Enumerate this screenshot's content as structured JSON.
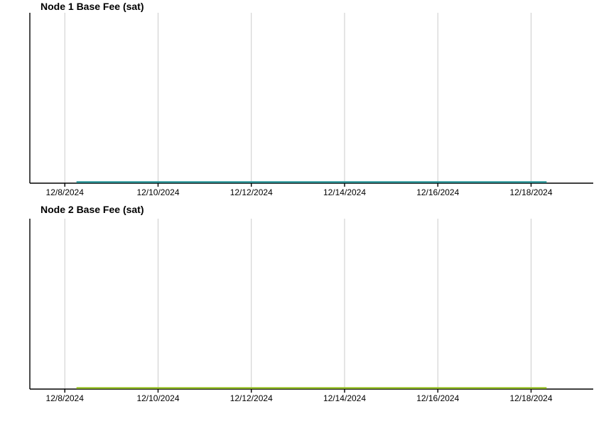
{
  "chart_data": [
    {
      "type": "line",
      "title": "Node 1 Base Fee (sat)",
      "xlabel": "",
      "ylabel": "",
      "legend": "none",
      "grid": "vertical-only",
      "grid_color": "#cbcbcb",
      "axis_color": "#000000",
      "tick_label_color": "#000000",
      "x_tick_labels": [
        "12/8/2024",
        "12/10/2024",
        "12/12/2024",
        "12/14/2024",
        "12/16/2024",
        "12/18/2024"
      ],
      "y_tick_labels": [],
      "x_range": [
        "12/7/2024 06:00",
        "12/19/2024 08:00"
      ],
      "ylim": [
        0,
        1
      ],
      "series": [
        {
          "name": "Node 1 Base Fee (sat)",
          "color": "#2c999c",
          "shape": "flat-constant-line",
          "x": [
            "12/8/2024 06:00",
            "12/18/2024 08:00"
          ],
          "y": [
            0,
            0
          ]
        }
      ]
    },
    {
      "type": "line",
      "title": "Node 2 Base Fee (sat)",
      "xlabel": "",
      "ylabel": "",
      "legend": "none",
      "grid": "vertical-only",
      "grid_color": "#cbcbcb",
      "axis_color": "#000000",
      "tick_label_color": "#000000",
      "x_tick_labels": [
        "12/8/2024",
        "12/10/2024",
        "12/12/2024",
        "12/14/2024",
        "12/16/2024",
        "12/18/2024"
      ],
      "y_tick_labels": [],
      "x_range": [
        "12/7/2024 06:00",
        "12/19/2024 08:00"
      ],
      "ylim": [
        0,
        1
      ],
      "series": [
        {
          "name": "Node 2 Base Fee (sat)",
          "color": "#9cc52b",
          "shape": "flat-constant-line",
          "x": [
            "12/8/2024 06:00",
            "12/18/2024 08:00"
          ],
          "y": [
            0,
            0
          ]
        }
      ]
    }
  ]
}
